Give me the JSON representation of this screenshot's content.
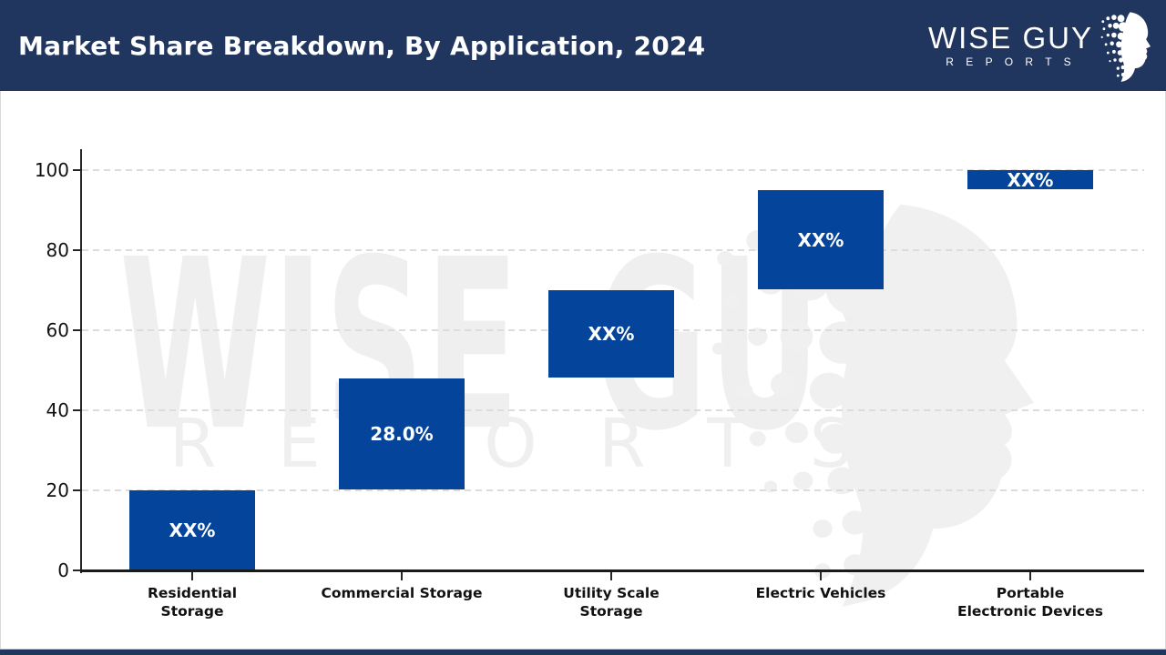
{
  "header": {
    "title": "Market Share Breakdown, By Application, 2024",
    "logo": {
      "wordmark": "WISE GUY",
      "subtext": "R E P O R T S"
    }
  },
  "watermark": {
    "wordmark": "WISE GUY",
    "subtext": "R E P O R T S"
  },
  "colors": {
    "header_bg": "#20365e",
    "bar": "#04449a",
    "bar_label": "#ffffff",
    "axis": "#1a1a1a",
    "grid": "#dcdcdc",
    "watermark": "#efefef",
    "title_text": "#ffffff",
    "tick_text": "#111111"
  },
  "chart_data": {
    "type": "bar",
    "subtype": "waterfall",
    "title": "Market Share Breakdown, By Application, 2024",
    "categories": [
      "Residential Storage",
      "Commercial Storage",
      "Utility Scale Storage",
      "Electric Vehicles",
      "Portable Electronic Devices"
    ],
    "category_label_lines": [
      [
        "Residential",
        "Storage"
      ],
      [
        "Commercial Storage"
      ],
      [
        "Utility Scale",
        "Storage"
      ],
      [
        "Electric Vehicles"
      ],
      [
        "Portable",
        "Electronic Devices"
      ]
    ],
    "values": [
      20,
      28,
      22,
      25,
      5
    ],
    "cumulative_ranges": [
      [
        0,
        20
      ],
      [
        20,
        48
      ],
      [
        48,
        70
      ],
      [
        70,
        95
      ],
      [
        95,
        100
      ]
    ],
    "bar_labels": [
      "XX%",
      "28.0%",
      "XX%",
      "XX%",
      "XX%"
    ],
    "xlabel": "",
    "ylabel": "",
    "ylim": [
      0,
      100
    ],
    "yticks": [
      0,
      20,
      40,
      60,
      80,
      100
    ],
    "grid": "horizontal dashed",
    "legend": "none"
  }
}
